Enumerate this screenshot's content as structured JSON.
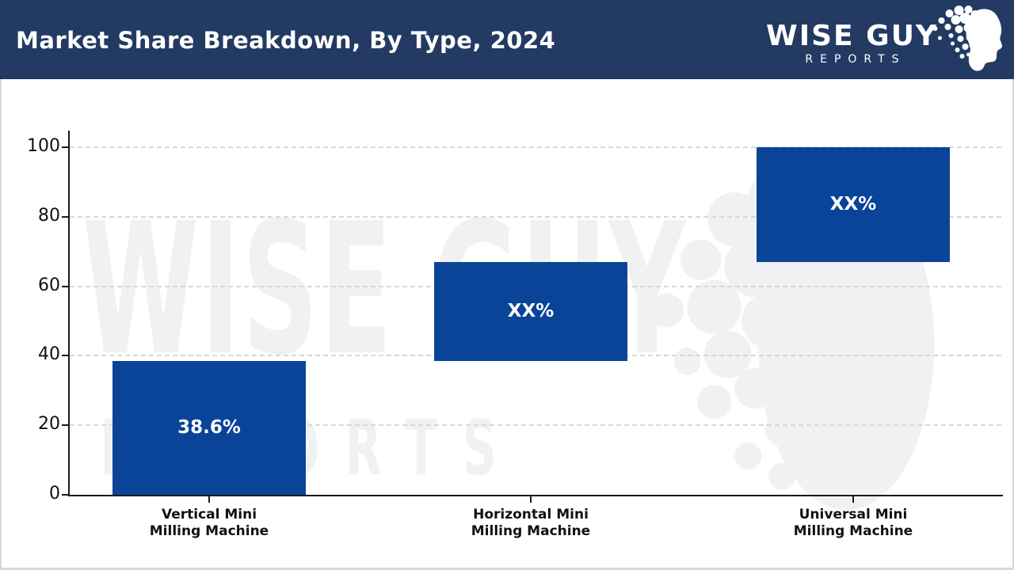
{
  "header": {
    "title": "Market Share Breakdown, By Type, 2024",
    "logo": {
      "line1": "WISE GUY",
      "line2": "REPORTS"
    }
  },
  "watermark": {
    "line1": "WISE GUY",
    "line2": "REPORTS"
  },
  "chart_data": {
    "type": "bar",
    "subtype": "waterfall",
    "title": "Market Share Breakdown, By Type, 2024",
    "categories": [
      [
        "Vertical Mini",
        "Milling Machine"
      ],
      [
        "Horizontal Mini",
        "Milling Machine"
      ],
      [
        "Universal Mini",
        "Milling Machine"
      ]
    ],
    "segments": [
      {
        "start": 0,
        "end": 38.6,
        "label": "38.6%"
      },
      {
        "start": 38.6,
        "end": 67,
        "label": "XX%"
      },
      {
        "start": 67,
        "end": 100,
        "label": "XX%"
      }
    ],
    "ylim": [
      0,
      100
    ],
    "yticks": [
      0,
      20,
      40,
      60,
      80,
      100
    ],
    "xlabel": "",
    "ylabel": "",
    "grid": "horizontal-dashed",
    "legend": "none",
    "bar_color": "#0a4499"
  },
  "colors": {
    "header_bg": "#233a63",
    "bar": "#0a4499",
    "grid": "#d7d7d7",
    "axis": "#1a1a1a",
    "title_text": "#ffffff",
    "watermark": "#f1f1f4"
  }
}
